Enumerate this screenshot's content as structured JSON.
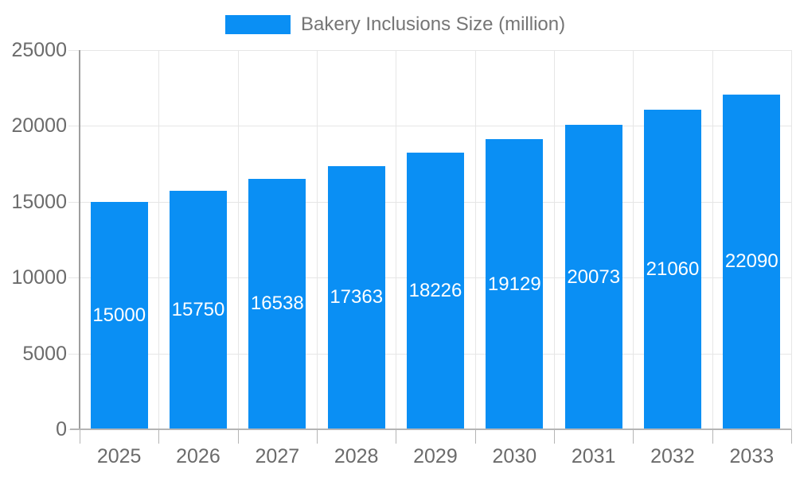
{
  "legend": {
    "label": "Bakery Inclusions Size (million)",
    "swatch_color": "#0a8ff4"
  },
  "chart_data": {
    "type": "bar",
    "title": "Bakery Inclusions Size (million)",
    "series_name": "Bakery Inclusions Size (million)",
    "categories": [
      "2025",
      "2026",
      "2027",
      "2028",
      "2029",
      "2030",
      "2031",
      "2032",
      "2033"
    ],
    "values": [
      15000,
      15750,
      16538,
      17363,
      18226,
      19129,
      20073,
      21060,
      22090
    ],
    "data_labels": [
      "15000",
      "15750",
      "16538",
      "17363",
      "18226",
      "19129",
      "20073",
      "21060",
      "22090"
    ],
    "xlabel": "",
    "ylabel": "",
    "ylim": [
      0,
      25000
    ],
    "yticks": [
      0,
      5000,
      10000,
      15000,
      20000,
      25000
    ],
    "ytick_labels": [
      "0",
      "5000",
      "10000",
      "15000",
      "20000",
      "25000"
    ],
    "grid": true,
    "legend_position": "top",
    "bar_color": "#0a8ff4",
    "bar_label_color": "#ffffff"
  },
  "colors": {
    "bar": "#0a8ff4",
    "gridline": "#e6e6e6",
    "axis_line": "#9e9e9e",
    "baseline": "#b5b5b5",
    "tick": "#b5b5b5",
    "ytick_dash": "#e6e6e6",
    "legend_text": "#757575",
    "axis_text": "#6b6b6b",
    "background": "#ffffff"
  }
}
